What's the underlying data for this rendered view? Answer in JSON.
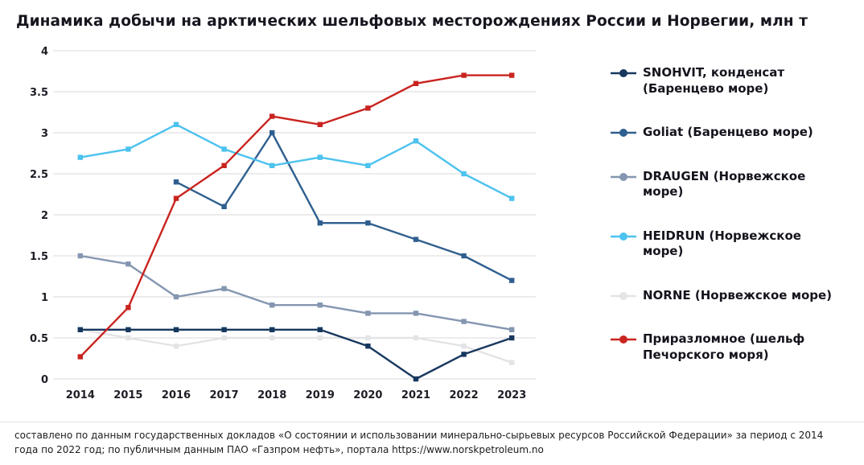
{
  "title": "Динамика добычи на арктических шельфовых месторождениях России и Норвегии, млн т",
  "footer": "составлено по данным государственных докладов «О состоянии и использовании минерально-сырьевых ресурсов Российской Федерации» за период с 2014 года по 2022 год; по публичным данным ПАО «Газпром нефть», портала https://www.norskpetroleum.no",
  "chart_data": {
    "type": "line",
    "title": "Динамика добычи на арктических шельфовых месторождениях России и Норвегии, млн т",
    "xlabel": "",
    "ylabel": "",
    "ylim": [
      0,
      4
    ],
    "yticks": [
      0,
      0.5,
      1,
      1.5,
      2,
      2.5,
      3,
      3.5,
      4
    ],
    "grid": true,
    "legend_position": "right",
    "marker": "square",
    "x": [
      "2014",
      "2015",
      "2016",
      "2017",
      "2018",
      "2019",
      "2020",
      "2021",
      "2022",
      "2023"
    ],
    "series": [
      {
        "name": "SNOHVIT, конденсат (Баренцево море)",
        "color": "#17375e",
        "values": [
          0.6,
          0.6,
          0.6,
          0.6,
          0.6,
          0.6,
          0.4,
          0,
          0.3,
          0.5
        ]
      },
      {
        "name": "Goliat (Баренцево море)",
        "color": "#2f5f8f",
        "values": [
          null,
          null,
          2.4,
          2.1,
          3.0,
          1.9,
          1.9,
          1.7,
          1.5,
          1.2
        ]
      },
      {
        "name": "DRAUGEN (Норвежское море)",
        "color": "#8496b0",
        "values": [
          1.5,
          1.4,
          1.0,
          1.1,
          0.9,
          0.9,
          0.8,
          0.8,
          0.7,
          0.6
        ]
      },
      {
        "name": "HEIDRUN (Норвежское море)",
        "color": "#4cc2ef",
        "values": [
          2.7,
          2.8,
          3.1,
          2.8,
          2.6,
          2.7,
          2.6,
          2.9,
          2.5,
          2.2
        ]
      },
      {
        "name": "NORNE (Норвежское море)",
        "color": "#e3e4e6",
        "values": [
          0.6,
          0.5,
          0.4,
          0.5,
          0.5,
          0.5,
          0.5,
          0.5,
          0.4,
          0.2
        ]
      },
      {
        "name": "Приразломное (шельф Печорского моря)",
        "color": "#c9241f",
        "values": [
          0.27,
          0.87,
          2.2,
          2.6,
          3.2,
          3.1,
          3.3,
          3.6,
          3.7,
          3.7
        ]
      }
    ]
  }
}
